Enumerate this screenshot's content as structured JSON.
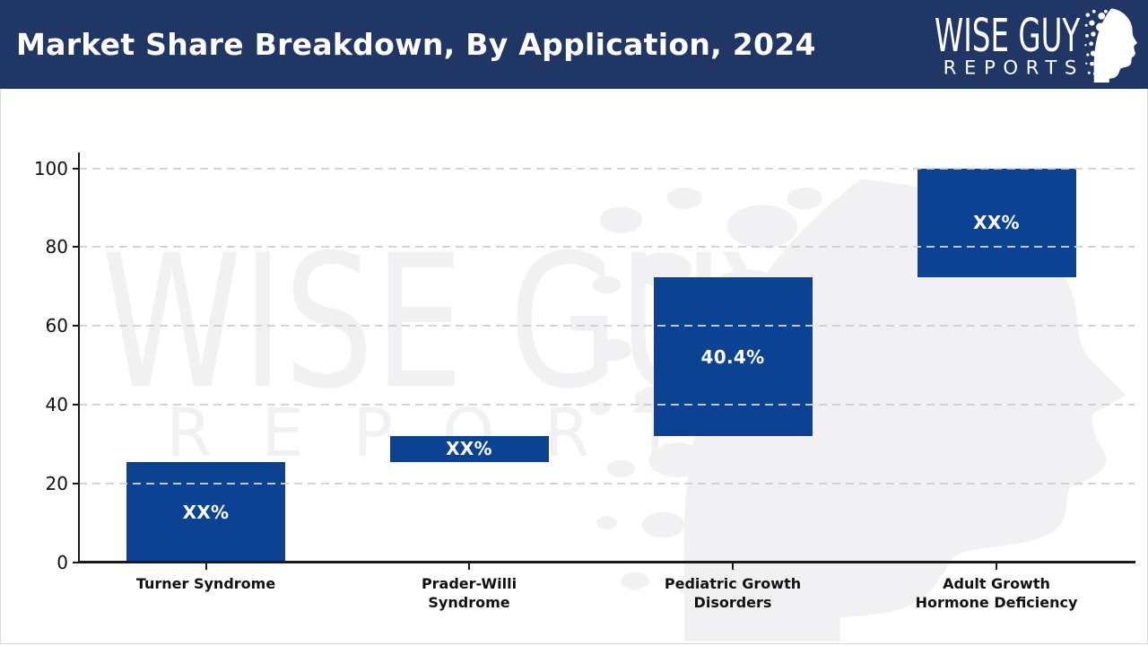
{
  "header": {
    "title": "Market Share Breakdown, By Application, 2024"
  },
  "brand": {
    "line1": "WISE GUY",
    "line2": "REPORTS"
  },
  "chart_data": {
    "type": "bar",
    "variant": "floating-waterfall",
    "title": "Market Share Breakdown, By Application, 2024",
    "categories": [
      "Turner Syndrome",
      "Prader-Willi Syndrome",
      "Pediatric Growth Disorders",
      "Adult Growth Hormone Deficiency"
    ],
    "category_label_lines": [
      [
        "Turner Syndrome"
      ],
      [
        "Prader-Willi",
        "Syndrome"
      ],
      [
        "Pediatric Growth",
        "Disorders"
      ],
      [
        "Adult Growth",
        "Hormone Deficiency"
      ]
    ],
    "series": [
      {
        "name": "Market Share (%)",
        "segments": [
          {
            "category": "Turner Syndrome",
            "start": 0,
            "end": 25.6,
            "label": "XX%"
          },
          {
            "category": "Prader-Willi Syndrome",
            "start": 25.6,
            "end": 32,
            "label": "XX%"
          },
          {
            "category": "Pediatric Growth Disorders",
            "start": 32,
            "end": 72.4,
            "label": "40.4%"
          },
          {
            "category": "Adult Growth Hormone Deficiency",
            "start": 72.4,
            "end": 100,
            "label": "XX%"
          }
        ]
      }
    ],
    "xlabel": "",
    "ylabel": "",
    "ylim": [
      0,
      100
    ],
    "yticks": [
      0,
      20,
      40,
      60,
      80,
      100
    ],
    "grid": "horizontal dashed gridlines drawn above bars",
    "legend": "none"
  },
  "colors": {
    "header_bg": "#203665",
    "bar": "#0b4392",
    "grid": "#d0d0d2",
    "axis": "#1a1a1a",
    "bar_label": "#ffffff",
    "watermark": "#f1f1f4",
    "title_text": "#ffffff"
  }
}
